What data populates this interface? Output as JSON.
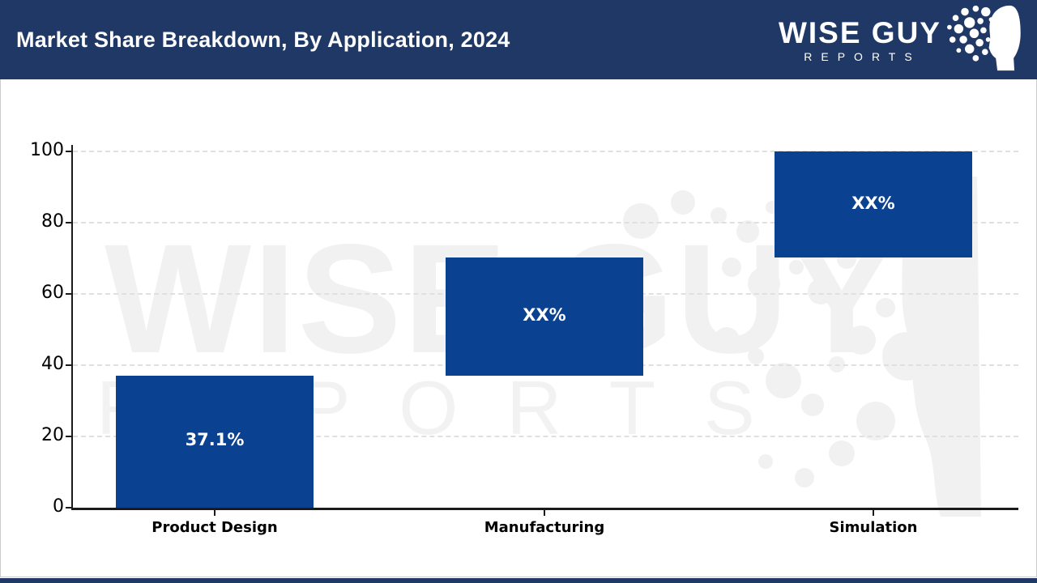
{
  "header": {
    "title": "Market Share Breakdown, By Application, 2024",
    "logo": {
      "line1": "WISE GUY",
      "line2": "REPORTS"
    }
  },
  "watermark": {
    "line1": "WISE GUY",
    "line2": "REPORTS"
  },
  "colors": {
    "header_bg": "#1f3865",
    "bar": "#0b4191",
    "grid": "#e0e0e0",
    "axis": "#1a1a1a",
    "watermark": "#f1f1f1",
    "bar_label": "#ffffff"
  },
  "chart_data": {
    "type": "bar",
    "subtype": "waterfall",
    "title": "Market Share Breakdown, By Application, 2024",
    "categories": [
      "Product Design",
      "Manufacturing",
      "Simulation"
    ],
    "segments": [
      {
        "category": "Product Design",
        "start": 0,
        "end": 37.1,
        "label": "37.1%"
      },
      {
        "category": "Manufacturing",
        "start": 37.1,
        "end": 70.2,
        "label": "XX%"
      },
      {
        "category": "Simulation",
        "start": 70.2,
        "end": 100,
        "label": "XX%"
      }
    ],
    "xlabel": "",
    "ylabel": "",
    "ylim": [
      0,
      100
    ],
    "yticks": [
      0,
      20,
      40,
      60,
      80,
      100
    ],
    "grid": true,
    "legend": "none"
  }
}
